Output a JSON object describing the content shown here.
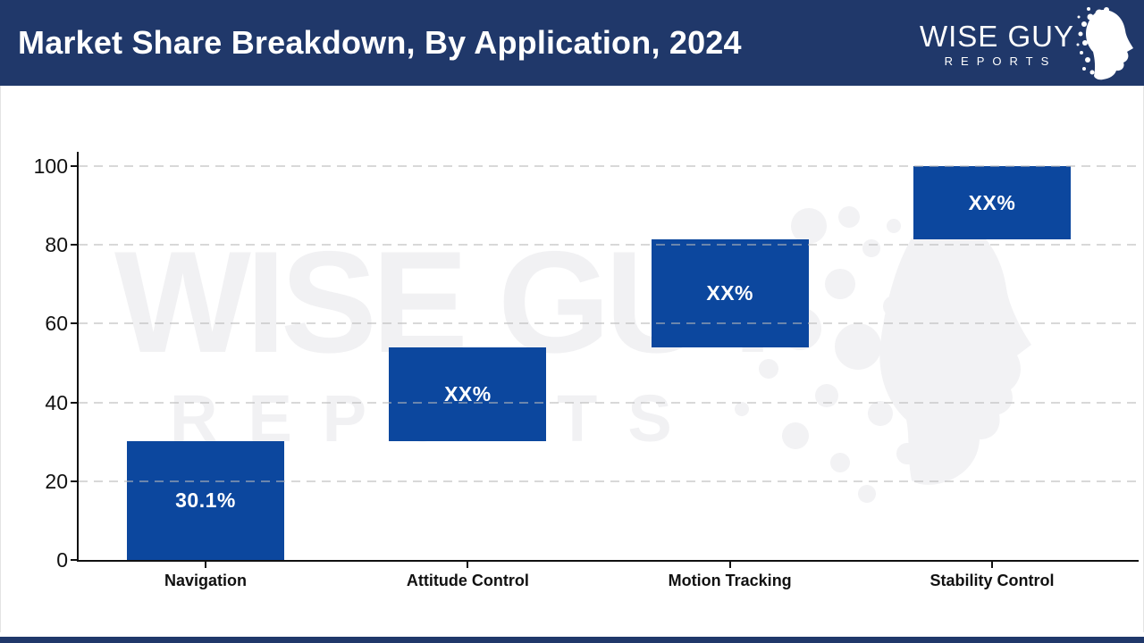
{
  "header": {
    "title": "Market Share Breakdown, By Application, 2024",
    "logo": {
      "line1": "WISE GUY",
      "line2": "REPORTS"
    }
  },
  "watermark": {
    "line1": "WISE GUY",
    "line2": "REPORTS"
  },
  "chart_data": {
    "type": "bar",
    "subtype": "waterfall",
    "title": "Market Share Breakdown, By Application, 2024",
    "categories": [
      "Navigation",
      "Attitude Control",
      "Motion Tracking",
      "Stability Control"
    ],
    "series": [
      {
        "name": "Market share (%)",
        "segments": [
          {
            "category": "Navigation",
            "start": 0,
            "end": 30.1,
            "label": "30.1%"
          },
          {
            "category": "Attitude Control",
            "start": 30.1,
            "end": 54,
            "label": "XX%"
          },
          {
            "category": "Motion Tracking",
            "start": 54,
            "end": 81.4,
            "label": "XX%"
          },
          {
            "category": "Stability Control",
            "start": 81.4,
            "end": 100,
            "label": "XX%"
          }
        ]
      }
    ],
    "xlabel": "",
    "ylabel": "",
    "ylim": [
      0,
      104
    ],
    "yticks": [
      0,
      20,
      40,
      60,
      80,
      100
    ],
    "grid": "horizontal-dashed",
    "legend": "none",
    "colors": {
      "bar": "#0c479e",
      "bar_label": "#ffffff",
      "axis": "#111111",
      "grid": "#c0c0c0",
      "tick_label": "#111111"
    }
  },
  "colors": {
    "header_bg": "#20386a",
    "footer_bg": "#20386a",
    "page_bg": "#ffffff",
    "watermark": "#f1f1f3"
  }
}
